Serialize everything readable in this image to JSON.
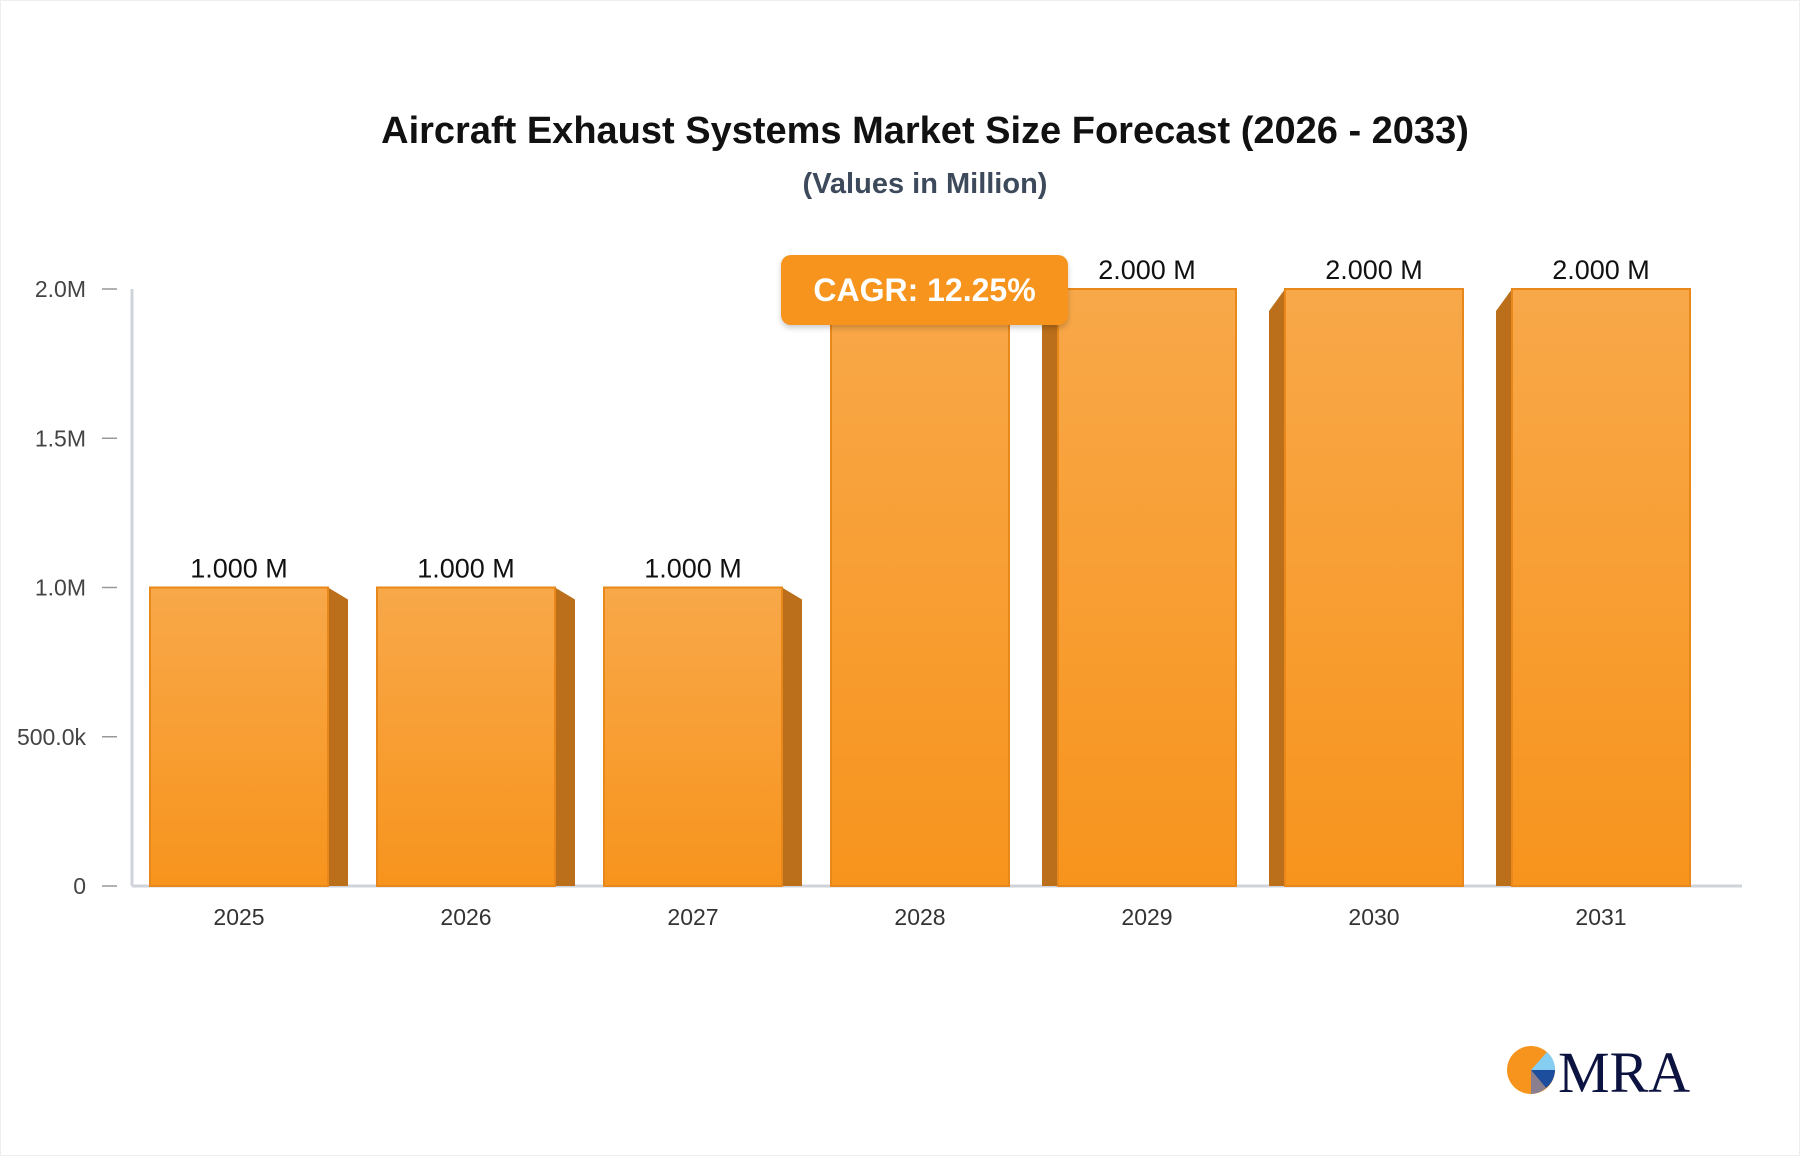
{
  "chart_data": {
    "type": "bar",
    "title": "Aircraft Exhaust Systems Market Size Forecast (2026 - 2033)",
    "subtitle": "(Values in Million)",
    "categories": [
      "2025",
      "2026",
      "2027",
      "2028",
      "2029",
      "2030",
      "2031"
    ],
    "values": [
      1.0,
      1.0,
      1.0,
      2.0,
      2.0,
      2.0,
      2.0
    ],
    "value_unit": "M",
    "data_labels": [
      "1.000 M",
      "1.000 M",
      "1.000 M",
      "",
      "2.000 M",
      "2.000 M",
      "2.000 M"
    ],
    "yticks": [
      0,
      0.5,
      1.0,
      1.5,
      2.0
    ],
    "ytick_labels": [
      "0",
      "500.0k",
      "1.0M",
      "1.5M",
      "2.0M"
    ],
    "ylim": [
      0,
      2.0
    ],
    "xlabel": "",
    "ylabel": "",
    "grid": false,
    "bar_color": "#f7941d",
    "annotation": "CAGR: 12.25%"
  },
  "logo": {
    "text": "MRA"
  }
}
